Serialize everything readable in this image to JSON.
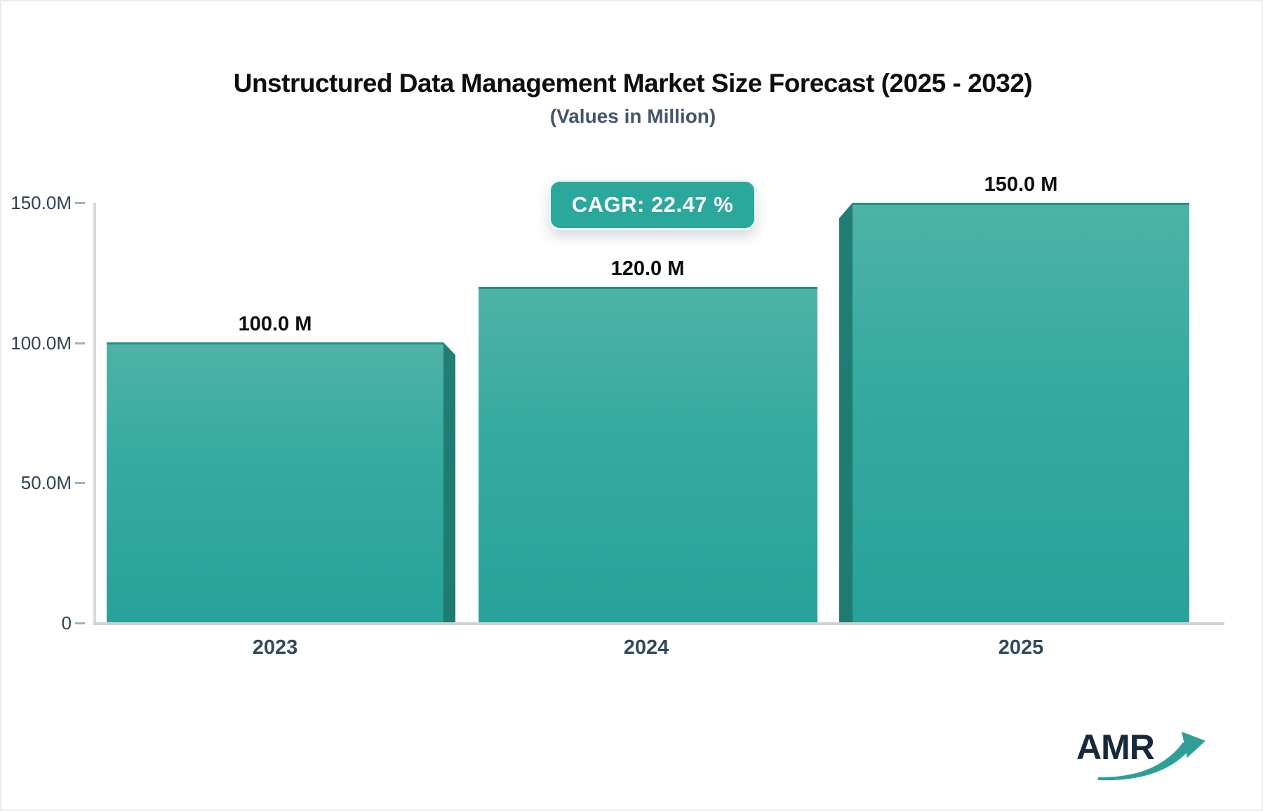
{
  "chart_data": {
    "type": "bar",
    "title": "Unstructured Data Management Market Size Forecast (2025 - 2032)",
    "subtitle": "(Values in Million)",
    "categories": [
      "2023",
      "2024",
      "2025"
    ],
    "values": [
      100.0,
      120.0,
      150.0
    ],
    "value_labels": [
      "100.0 M",
      "120.0 M",
      "150.0 M"
    ],
    "unit": "Million",
    "ylim": [
      0,
      150
    ],
    "ytick_labels": [
      "150.0M",
      "100.0M",
      "50.0M",
      "0"
    ],
    "grid": false,
    "legend": "none",
    "bar_color": "#2faaa0",
    "bar_side_color": "#1f7a71",
    "axis_color": "#cdd2d9"
  },
  "badge": {
    "label": "CAGR: 22.47 %",
    "bg_color": "#2ba89c",
    "text_color": "#ffffff"
  },
  "logo": {
    "text": "AMR",
    "text_color": "#16293c",
    "arrow_color": "#2e9f94",
    "arrow_icon": "growth-arrow"
  }
}
